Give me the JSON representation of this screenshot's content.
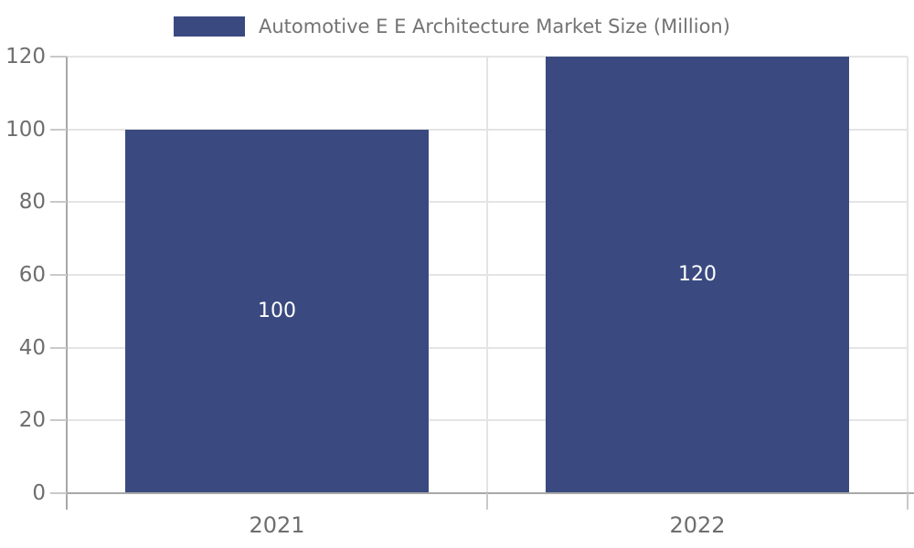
{
  "legend": {
    "label": "Automotive E E Architecture Market Size (Million)"
  },
  "chart_data": {
    "type": "bar",
    "title": "Automotive E E Architecture Market Size (Million)",
    "categories": [
      "2021",
      "2022"
    ],
    "values": [
      100,
      120
    ],
    "bar_labels": [
      "100",
      "120"
    ],
    "xlabel": "",
    "ylabel": "",
    "ylim": [
      0,
      120
    ],
    "yticks": [
      0,
      20,
      40,
      60,
      80,
      100,
      120
    ],
    "grid": true,
    "legend_position": "top-center"
  },
  "colors": {
    "bar": "#3A4A80",
    "bar_label": "#FFFFFF",
    "axis_line": "#A8A8A8",
    "tick_mark": "#C9C9C9",
    "gridline": "#E4E4E4",
    "tick_label": "#6E6E6E",
    "legend_text": "#737373",
    "background": "#FFFFFF"
  }
}
